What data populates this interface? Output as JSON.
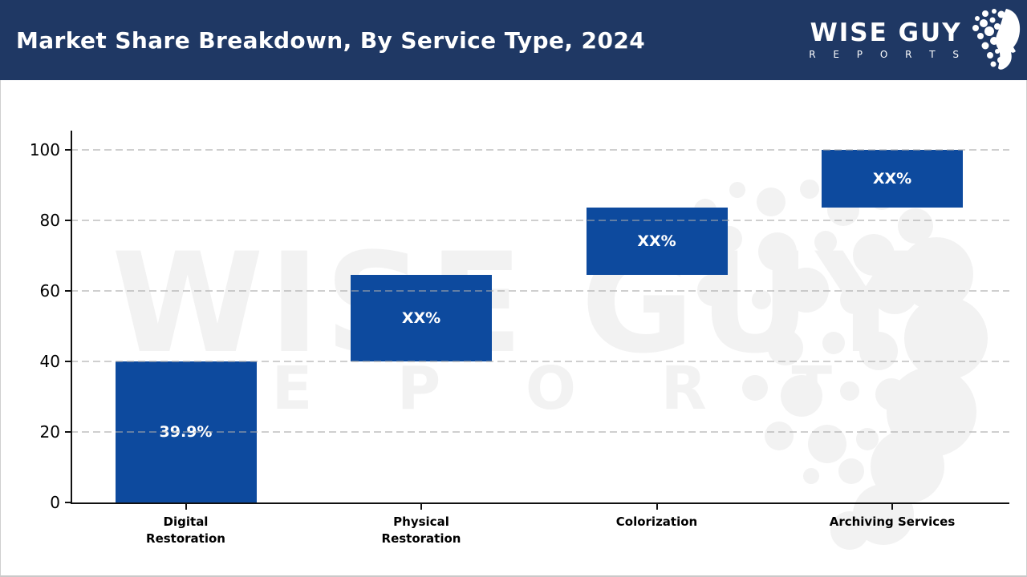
{
  "header": {
    "title": "Market Share Breakdown, By Service Type, 2024",
    "bg_color": "#1f3864",
    "logo": {
      "line1": "WISE GUY",
      "line2": "R E P O R T S",
      "icon": "dotted-head-profile-icon"
    }
  },
  "watermark": {
    "line1": "WISE GUY",
    "line2": "R E P O R T S",
    "icon": "dotted-head-profile-icon",
    "color": "#f2f2f2"
  },
  "chart_data": {
    "type": "bar",
    "subtype": "floating-segment-waterfall",
    "title": "Market Share Breakdown, By Service Type, 2024",
    "categories": [
      "Digital\nRestoration",
      "Physical\nRestoration",
      "Colorization",
      "Archiving Services"
    ],
    "segments": [
      {
        "category": "Digital Restoration",
        "start": 0,
        "end": 39.9,
        "label": "39.9%"
      },
      {
        "category": "Physical Restoration",
        "start": 39.9,
        "end": 64.6,
        "label": "XX%"
      },
      {
        "category": "Colorization",
        "start": 64.6,
        "end": 83.7,
        "label": "XX%"
      },
      {
        "category": "Archiving Services",
        "start": 83.7,
        "end": 100,
        "label": "XX%"
      }
    ],
    "xlabel": "",
    "ylabel": "",
    "ylim": [
      0,
      100
    ],
    "yticks": [
      0,
      20,
      40,
      60,
      80,
      100
    ],
    "grid": "dashed horizontal",
    "legend": "none",
    "bar_color": "#0d4a9e",
    "gridline_color": "#dcdcdc",
    "axis_color": "#111111"
  }
}
